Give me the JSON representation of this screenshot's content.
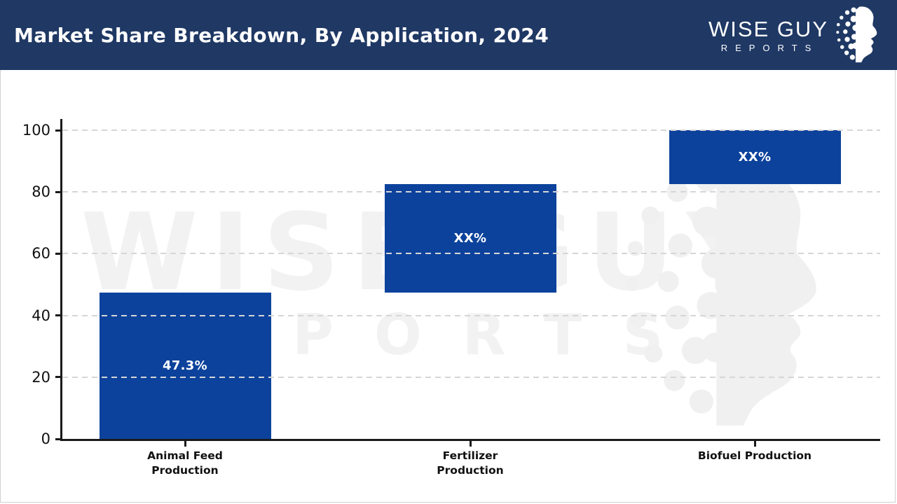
{
  "header": {
    "title": "Market Share Breakdown, By Application, 2024",
    "bg_color": "#1f3864",
    "logo": {
      "line1": "WISE GUY",
      "line2": "REPORTS"
    }
  },
  "watermark": {
    "line1": "WISE GUY",
    "line2": "REPORTS"
  },
  "chart_data": {
    "type": "bar",
    "variant": "waterfall",
    "title": "Market Share Breakdown, By Application, 2024",
    "categories": [
      [
        "Animal Feed",
        "Production"
      ],
      [
        "Fertilizer",
        "Production"
      ],
      [
        "Biofuel Production"
      ]
    ],
    "bars": [
      {
        "label": "47.3%",
        "start": 0,
        "end": 47.3
      },
      {
        "label": "XX%",
        "start": 47.3,
        "end": 82.5
      },
      {
        "label": "XX%",
        "start": 82.5,
        "end": 100
      }
    ],
    "yticks": [
      0,
      20,
      40,
      60,
      80,
      100
    ],
    "ylim": [
      0,
      103.5
    ],
    "ylabel": "",
    "xlabel": "",
    "bar_color": "#0c429c",
    "grid": "dashed-horizontal",
    "grid_color": "#d6d6d6",
    "axis_color": "#1a1a1a",
    "legend": "none"
  }
}
